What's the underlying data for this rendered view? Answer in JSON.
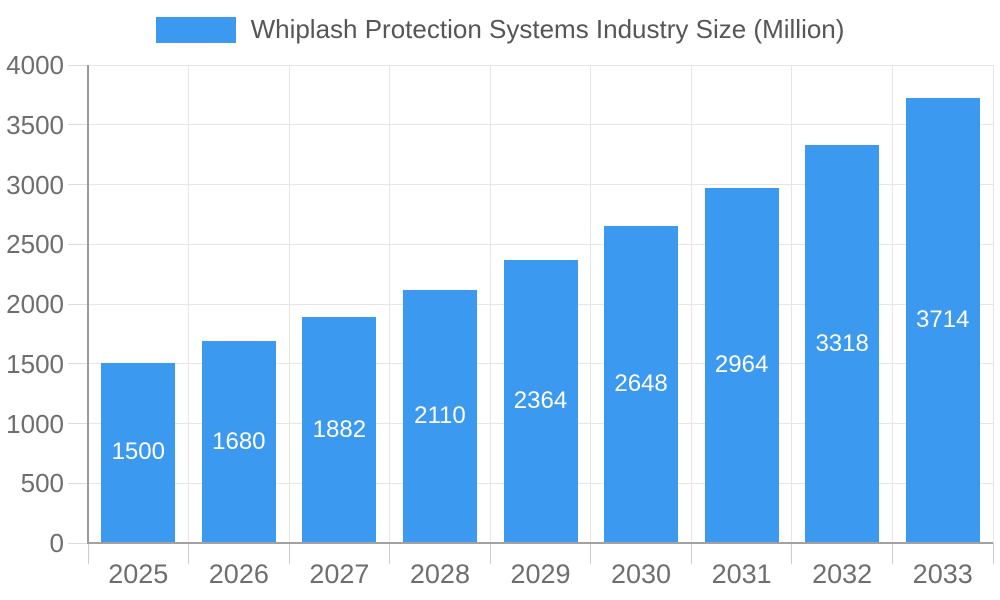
{
  "chart_data": {
    "type": "bar",
    "title": "Whiplash Protection Systems Industry Size (Million)",
    "legend": {
      "label": "Whiplash Protection Systems Industry Size (Million)",
      "position": "top"
    },
    "categories": [
      "2025",
      "2026",
      "2027",
      "2028",
      "2029",
      "2030",
      "2031",
      "2032",
      "2033"
    ],
    "values": [
      1500,
      1680,
      1882,
      2110,
      2364,
      2648,
      2964,
      3318,
      3714
    ],
    "xlabel": "",
    "ylabel": "",
    "ylim": [
      0,
      4000
    ],
    "ytick_step": 500,
    "grid": true,
    "colors": {
      "bar": "#3b99f0",
      "bar_value_label": "#ffffff",
      "gridline": "#e6e6e6",
      "axis_line": "#9a9a9a",
      "tick": "#cccccc",
      "tick_label": "#6e6e6e",
      "legend_text": "#565656"
    }
  }
}
